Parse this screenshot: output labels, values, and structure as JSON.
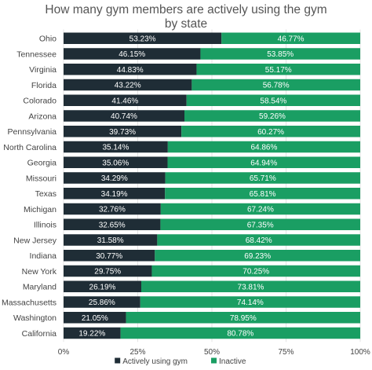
{
  "chart_data": {
    "type": "bar",
    "orientation": "horizontal",
    "stacked": true,
    "title": "How many gym members are actively using the gym by state",
    "categories": [
      "Ohio",
      "Tennessee",
      "Virginia",
      "Florida",
      "Colorado",
      "Arizona",
      "Pennsylvania",
      "North Carolina",
      "Georgia",
      "Missouri",
      "Texas",
      "Michigan",
      "Illinois",
      "New Jersey",
      "Indiana",
      "New York",
      "Maryland",
      "Massachusetts",
      "Washington",
      "California"
    ],
    "series": [
      {
        "name": "Actively using gym",
        "color": "#1f2d36",
        "values": [
          53.23,
          46.15,
          44.83,
          43.22,
          41.46,
          40.74,
          39.73,
          35.14,
          35.06,
          34.29,
          34.19,
          32.76,
          32.65,
          31.58,
          30.77,
          29.75,
          26.19,
          25.86,
          21.05,
          19.22
        ]
      },
      {
        "name": "Inactive",
        "color": "#1a9e63",
        "values": [
          46.77,
          53.85,
          55.17,
          56.78,
          58.54,
          59.26,
          60.27,
          64.86,
          64.94,
          65.71,
          65.81,
          67.24,
          67.35,
          68.42,
          69.23,
          70.25,
          73.81,
          74.14,
          78.95,
          80.78
        ]
      }
    ],
    "xlim": [
      0,
      100
    ],
    "xticks": [
      "0%",
      "25%",
      "50%",
      "75%",
      "100%"
    ],
    "value_suffix": "%",
    "legend": "bottom",
    "grid": true
  }
}
